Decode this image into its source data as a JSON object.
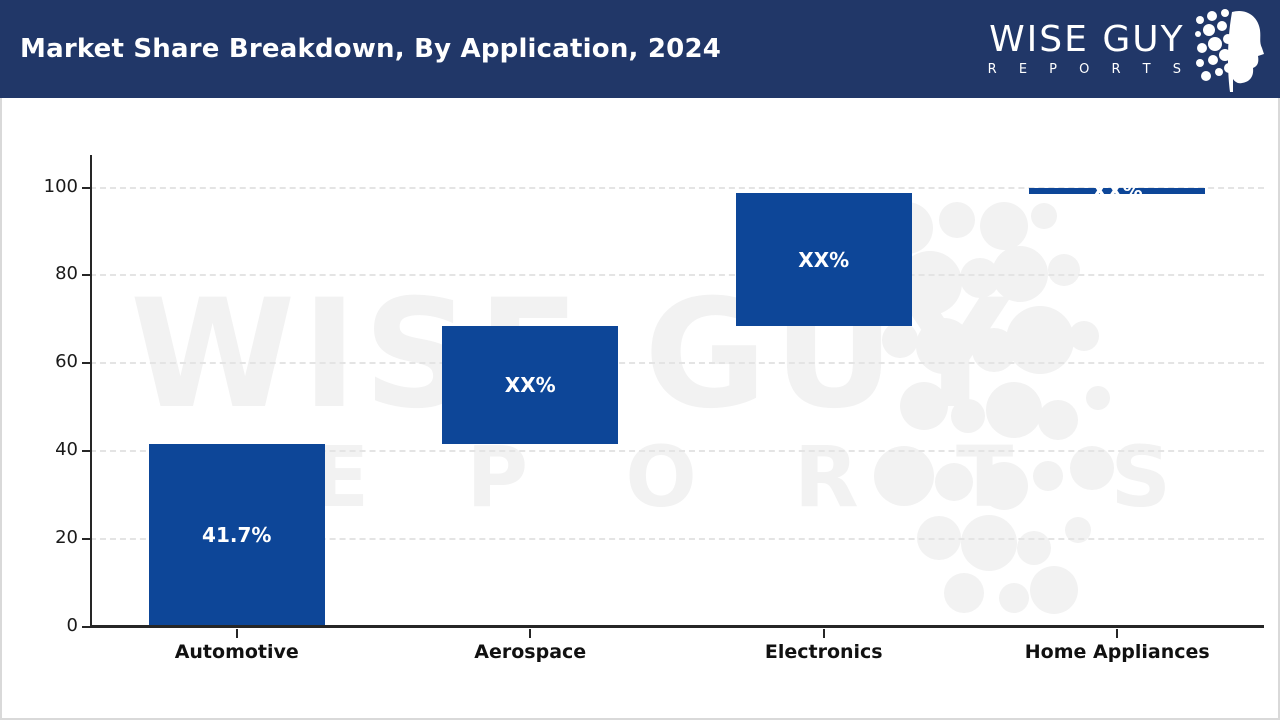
{
  "header": {
    "title": "Market Share Breakdown, By Application, 2024",
    "logo": {
      "line1": "WISE GUY",
      "line2": "R E P O R T S",
      "icon": "wiseguy-face-icon"
    }
  },
  "watermark": {
    "line1": "WISE GUY",
    "line2": "R E P O R T S"
  },
  "colors": {
    "header_bg": "#213768",
    "bar": "#0d4698",
    "bar_label": "#ffffff",
    "grid": "#e4e4e4",
    "axis": "#262626",
    "watermark": "#f2f2f2"
  },
  "chart_data": {
    "type": "bar",
    "subtype": "waterfall",
    "title": "Market Share Breakdown, By Application, 2024",
    "categories": [
      "Automotive",
      "Aerospace",
      "Electronics",
      "Home Appliances"
    ],
    "series": [
      {
        "name": "Market Share",
        "segments": [
          {
            "category": "Automotive",
            "start": 0,
            "end": 41.7,
            "label": "41.7%"
          },
          {
            "category": "Aerospace",
            "start": 41.7,
            "end": 68.5,
            "label": "XX%"
          },
          {
            "category": "Electronics",
            "start": 68.5,
            "end": 98.7,
            "label": "XX%"
          },
          {
            "category": "Home Appliances",
            "start": 98.6,
            "end": 100,
            "label": "XX%"
          }
        ]
      }
    ],
    "xlabel": "",
    "ylabel": "",
    "yticks": [
      0,
      20,
      40,
      60,
      80,
      100
    ],
    "ylim": [
      0,
      106
    ],
    "grid": true,
    "legend": "none"
  }
}
